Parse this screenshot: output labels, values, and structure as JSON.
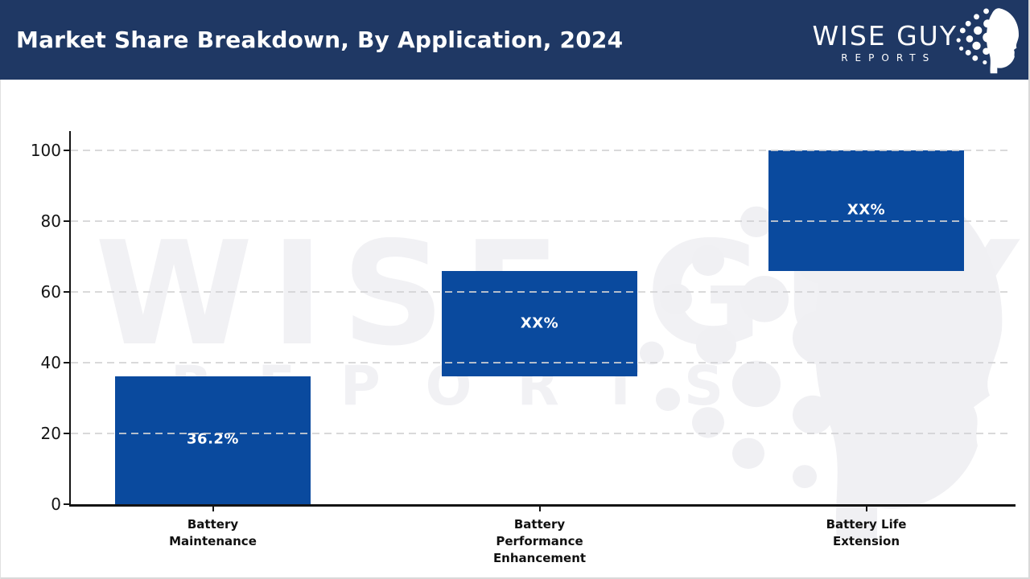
{
  "header": {
    "title": "Market Share Breakdown, By Application, 2024",
    "bg_color": "#1f3864",
    "logo": {
      "name": "Wise Guy Reports",
      "line1": "WISE GUY",
      "line2": "REPORTS"
    }
  },
  "watermark": {
    "line1": "WISE GUY",
    "line2": "REPORTS"
  },
  "chart_data": {
    "type": "bar",
    "subtype": "floating-waterfall",
    "title": "Market Share Breakdown, By Application, 2024",
    "xlabel": "",
    "ylabel": "",
    "ylim": [
      0,
      105
    ],
    "yticks": [
      0,
      20,
      40,
      60,
      80,
      100
    ],
    "grid": "horizontal-dashed",
    "legend": "none",
    "bar_color": "#0a4a9e",
    "bar_label_color": "#ffffff",
    "axis_color": "#141414",
    "grid_color": "#d2d2d4",
    "categories": [
      [
        "Battery",
        "Maintenance"
      ],
      [
        "Battery",
        "Performance",
        "Enhancement"
      ],
      [
        "Battery Life",
        "Extension"
      ]
    ],
    "bars": [
      {
        "category": "Battery Maintenance",
        "label": "36.2%",
        "start": 0,
        "end": 36.2
      },
      {
        "category": "Battery Performance Enhancement",
        "label": "XX%",
        "start": 36.2,
        "end": 65.8
      },
      {
        "category": "Battery Life Extension",
        "label": "XX%",
        "start": 65.8,
        "end": 100
      }
    ]
  }
}
